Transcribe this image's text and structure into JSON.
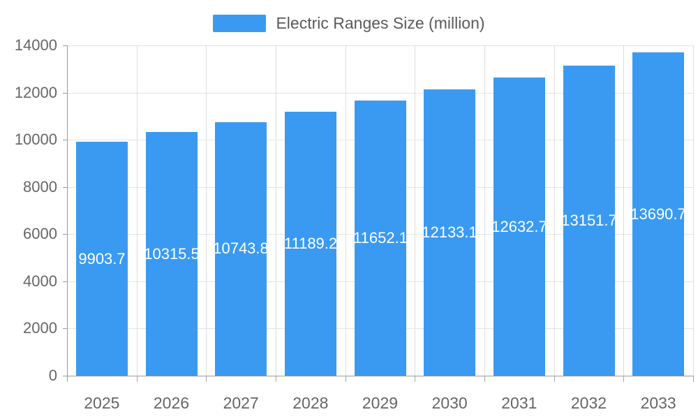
{
  "chart_data": {
    "type": "bar",
    "title": "",
    "legend_label": "Electric Ranges Size (million)",
    "legend_position": "top",
    "categories": [
      "2025",
      "2026",
      "2027",
      "2028",
      "2029",
      "2030",
      "2031",
      "2032",
      "2033"
    ],
    "series": [
      {
        "name": "Electric Ranges Size (million)",
        "values": [
          9903.7,
          10315.5,
          10743.8,
          11189.2,
          11652.1,
          12133.1,
          12632.7,
          13151.7,
          13690.7
        ]
      }
    ],
    "bar_value_labels": [
      "9903.7",
      "10315.5",
      "10743.8",
      "11189.2",
      "11652.1",
      "12133.1",
      "12632.7",
      "13151.7",
      "13690.7"
    ],
    "xlabel": "",
    "ylabel": "",
    "ylim": [
      0,
      14000
    ],
    "yticks": [
      0,
      2000,
      4000,
      6000,
      8000,
      10000,
      12000,
      14000
    ],
    "grid": true,
    "colors": {
      "bar": "#3a9af2",
      "bar_label_text": "#ffffff",
      "axis_line": "#999999",
      "tick_label": "#666666",
      "legend_text": "#5a5a5a",
      "gridline": "#e4e4e4",
      "background": "#ffffff"
    }
  }
}
